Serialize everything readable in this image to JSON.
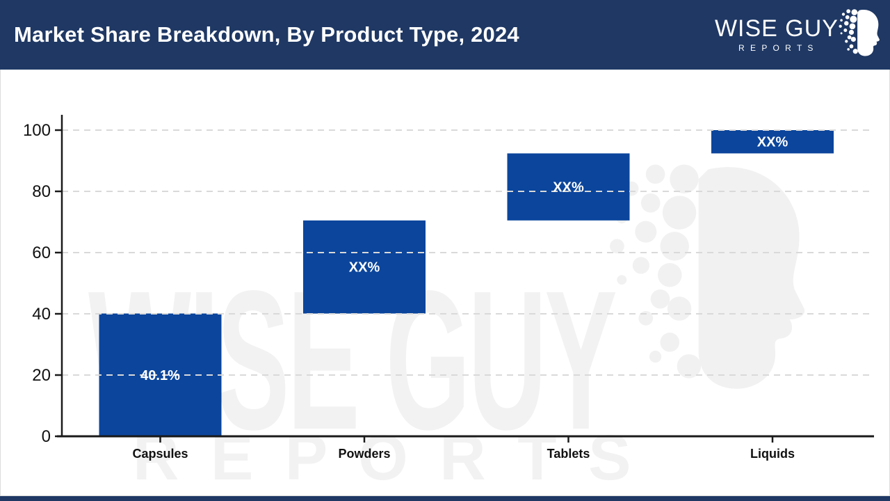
{
  "header": {
    "title": "Market Share Breakdown, By Product Type, 2024",
    "bg_color": "#1f3864",
    "logo": {
      "primary": "WISE GUY",
      "secondary": "R E P O R T S"
    }
  },
  "watermark": {
    "primary": "WISE GUY",
    "secondary": "R E P O R T S"
  },
  "footer": {
    "bg_color": "#1f3864"
  },
  "chart_data": {
    "type": "bar",
    "subtype": "floating-segment-waterfall",
    "title": "Market Share Breakdown, By Product Type, 2024",
    "categories": [
      "Capsules",
      "Powders",
      "Tablets",
      "Liquids"
    ],
    "segments": [
      {
        "category": "Capsules",
        "from": 0,
        "to": 40.1,
        "label": "40.1%"
      },
      {
        "category": "Powders",
        "from": 40.1,
        "to": 70.5,
        "label": "XX%"
      },
      {
        "category": "Tablets",
        "from": 70.5,
        "to": 92.4,
        "label": "XX%"
      },
      {
        "category": "Liquids",
        "from": 92.4,
        "to": 100,
        "label": "XX%"
      }
    ],
    "yticks": [
      0,
      20,
      40,
      60,
      80,
      100
    ],
    "ylim": [
      0,
      105
    ],
    "xlabel": "",
    "ylabel": "",
    "legend": "none",
    "grid": "horizontal-dashed-over-bars",
    "grid_color": "#d9d9d9",
    "bar_color": "#0b459c",
    "bar_label_color": "#ffffff",
    "axis_color": "#1a1a1a",
    "tick_label_color": "#111111"
  }
}
